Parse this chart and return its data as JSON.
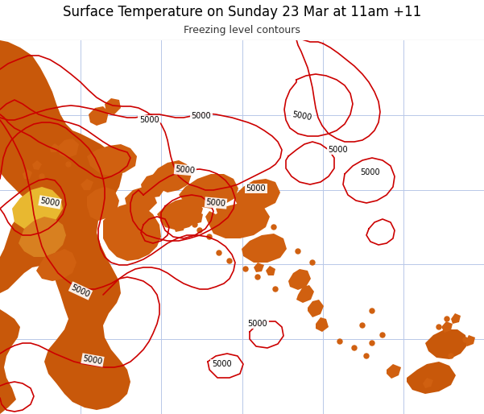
{
  "title": "Surface Temperature on Sunday 23 Mar at 11am +11",
  "subtitle": "Freezing level contours",
  "bg_color": "#c8d4ee",
  "land_color_main": "#c8580a",
  "land_color_mid": "#d06010",
  "land_color_high": "#d88020",
  "land_color_peak": "#e8b830",
  "land_color_orange": "#c86010",
  "contour_color": "#cc0000",
  "label_color": "#000000",
  "grid_color": "#b8c8e8",
  "title_fontsize": 12,
  "subtitle_fontsize": 9,
  "label_fontsize": 7,
  "fig_width": 6.01,
  "fig_height": 5.14,
  "dpi": 100
}
